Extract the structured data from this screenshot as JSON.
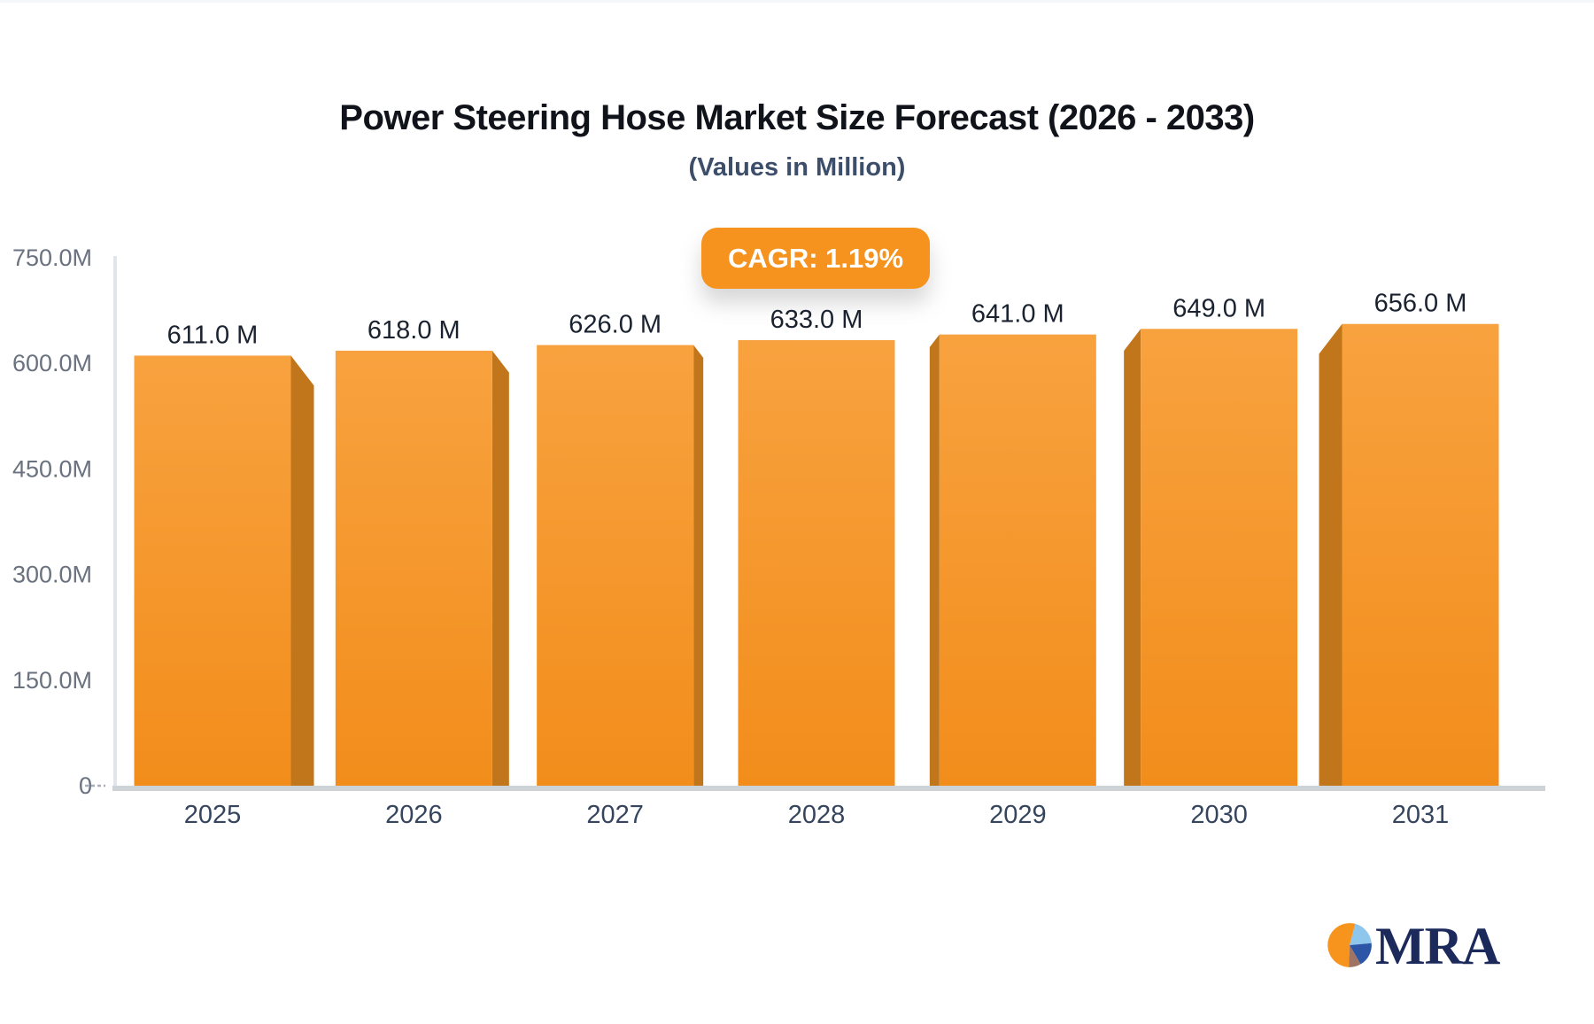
{
  "header": {
    "title": "Power Steering Hose Market Size Forecast (2026 - 2033)",
    "subtitle": "(Values in Million)"
  },
  "badge": {
    "label": "CAGR: 1.19%",
    "background": "#f6921e",
    "text_color": "#ffffff"
  },
  "chart_data": {
    "type": "bar",
    "title": "Power Steering Hose Market Size Forecast (2026 - 2033)",
    "subtitle": "(Values in Million)",
    "xlabel": "",
    "ylabel": "",
    "categories": [
      "2025",
      "2026",
      "2027",
      "2028",
      "2029",
      "2030",
      "2031"
    ],
    "values": [
      611,
      618,
      626,
      633,
      641,
      649,
      656
    ],
    "value_labels": [
      "611.0 M",
      "618.0 M",
      "626.0 M",
      "633.0 M",
      "641.0 M",
      "649.0 M",
      "656.0 M"
    ],
    "unit": "M",
    "ylim": [
      0,
      750
    ],
    "yticks": [
      {
        "value": 0,
        "label": "0"
      },
      {
        "value": 150,
        "label": "150.0M"
      },
      {
        "value": 300,
        "label": "300.0M"
      },
      {
        "value": 450,
        "label": "450.0M"
      },
      {
        "value": 600,
        "label": "600.0M"
      },
      {
        "value": 750,
        "label": "750.0M"
      }
    ],
    "grid": false,
    "legend": "none",
    "style": "3d-perspective-bars",
    "colors": {
      "bar_top": "#f8a23f",
      "bar_bottom": "#f28d1b",
      "bar_side": "#c1761b",
      "axis_line": "#e2e5e9",
      "baseline": "#ced3d8",
      "tick_dash": "#a8aeb6"
    }
  },
  "logo": {
    "text": "MRA",
    "colors": {
      "pie_orange": "#f7941e",
      "pie_lightblue": "#8fc6ec",
      "pie_blue": "#2d55a5",
      "pie_brown": "#a07463",
      "text": "#1b2a5b"
    }
  }
}
